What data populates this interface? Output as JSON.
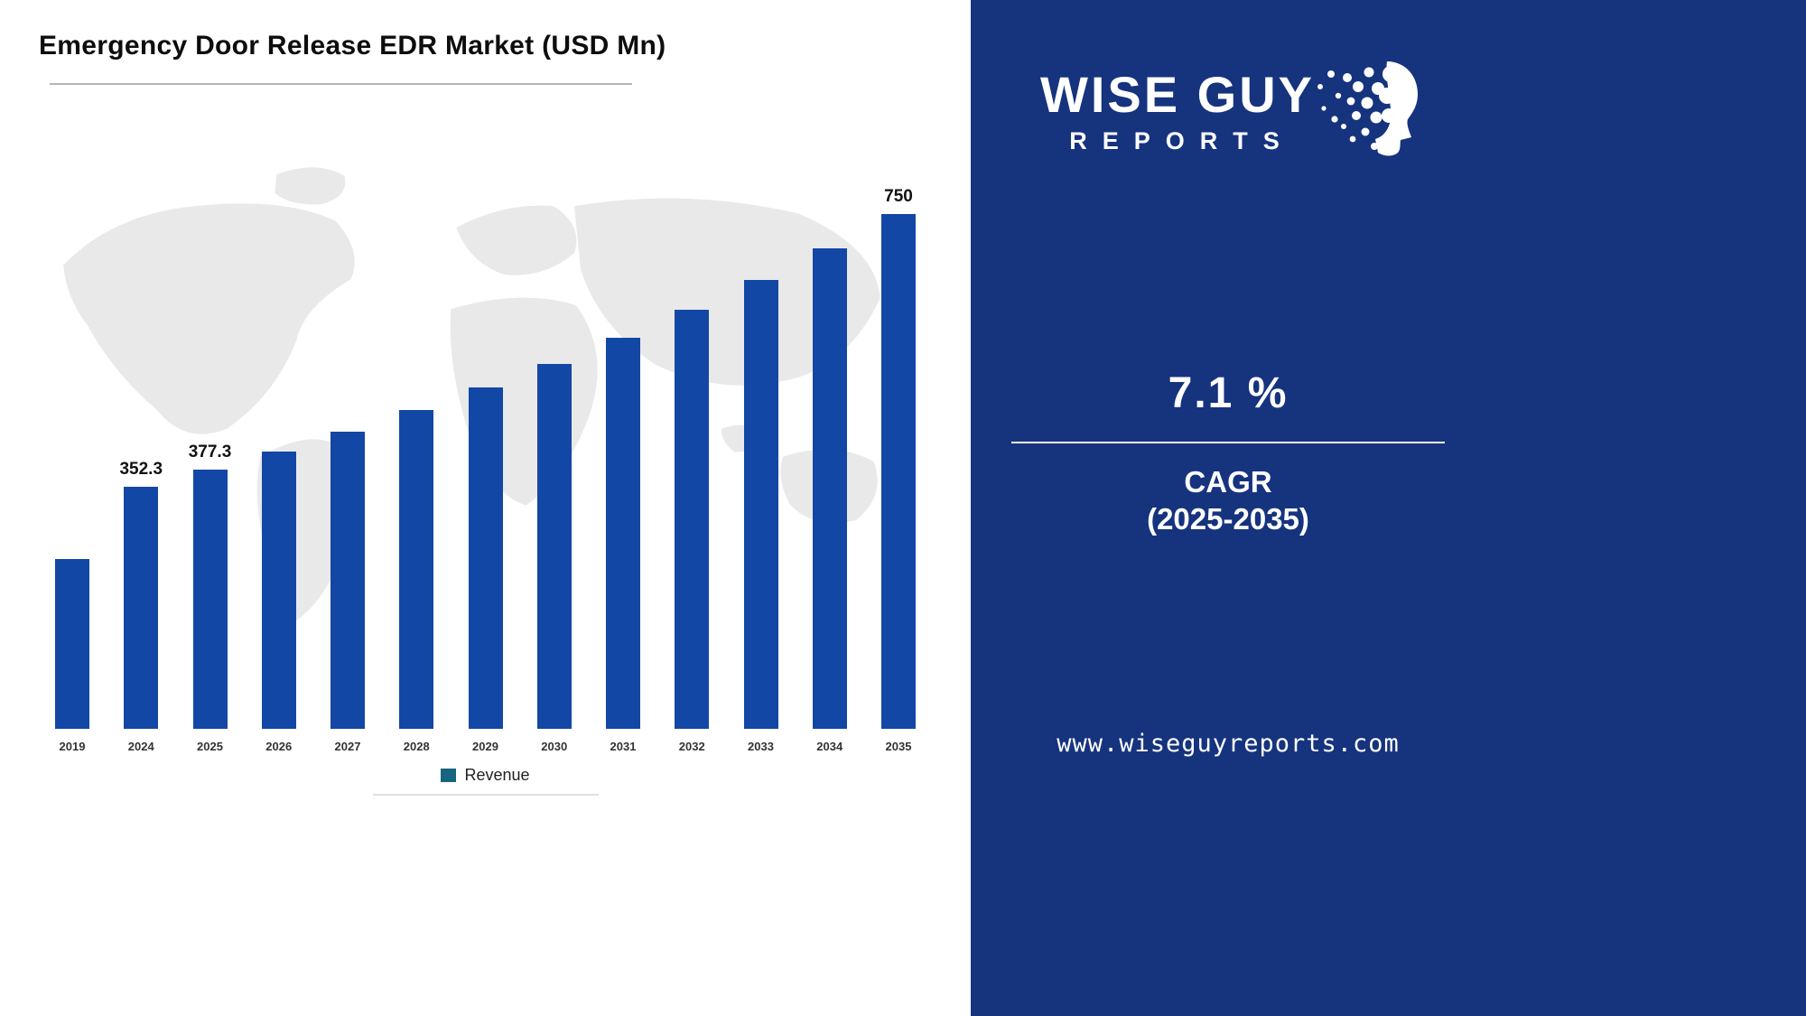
{
  "title": "Emergency Door Release EDR Market (USD Mn)",
  "legend": {
    "label": "Revenue",
    "swatch_color": "#17657e"
  },
  "colors": {
    "bar": "#1347a5",
    "panel_bg": "#16337e",
    "map": "#e9e9e9"
  },
  "brand": {
    "line1": "WISE GUY",
    "line2": "REPORTS"
  },
  "panel": {
    "cagr_value": "7.1 %",
    "cagr_label": "CAGR",
    "cagr_range": "(2025-2035)",
    "website": "www.wiseguyreports.com"
  },
  "chart_data": {
    "type": "bar",
    "title": "Emergency Door Release EDR Market (USD Mn)",
    "categories": [
      "2019",
      "2024",
      "2025",
      "2026",
      "2027",
      "2028",
      "2029",
      "2030",
      "2031",
      "2032",
      "2033",
      "2034",
      "2035"
    ],
    "values": [
      247,
      352.3,
      377.3,
      404,
      433,
      464,
      497,
      532,
      570,
      611,
      654,
      700,
      750
    ],
    "series": [
      {
        "name": "Revenue",
        "values": [
          247,
          352.3,
          377.3,
          404,
          433,
          464,
          497,
          532,
          570,
          611,
          654,
          700,
          750
        ]
      }
    ],
    "data_labels": {
      "2024": "352.3",
      "2025": "377.3",
      "2035": "750"
    },
    "xlabel": "",
    "ylabel": "",
    "ylim": [
      0,
      750
    ],
    "grid": false,
    "legend_position": "bottom",
    "bar_color": "#1347a5"
  }
}
